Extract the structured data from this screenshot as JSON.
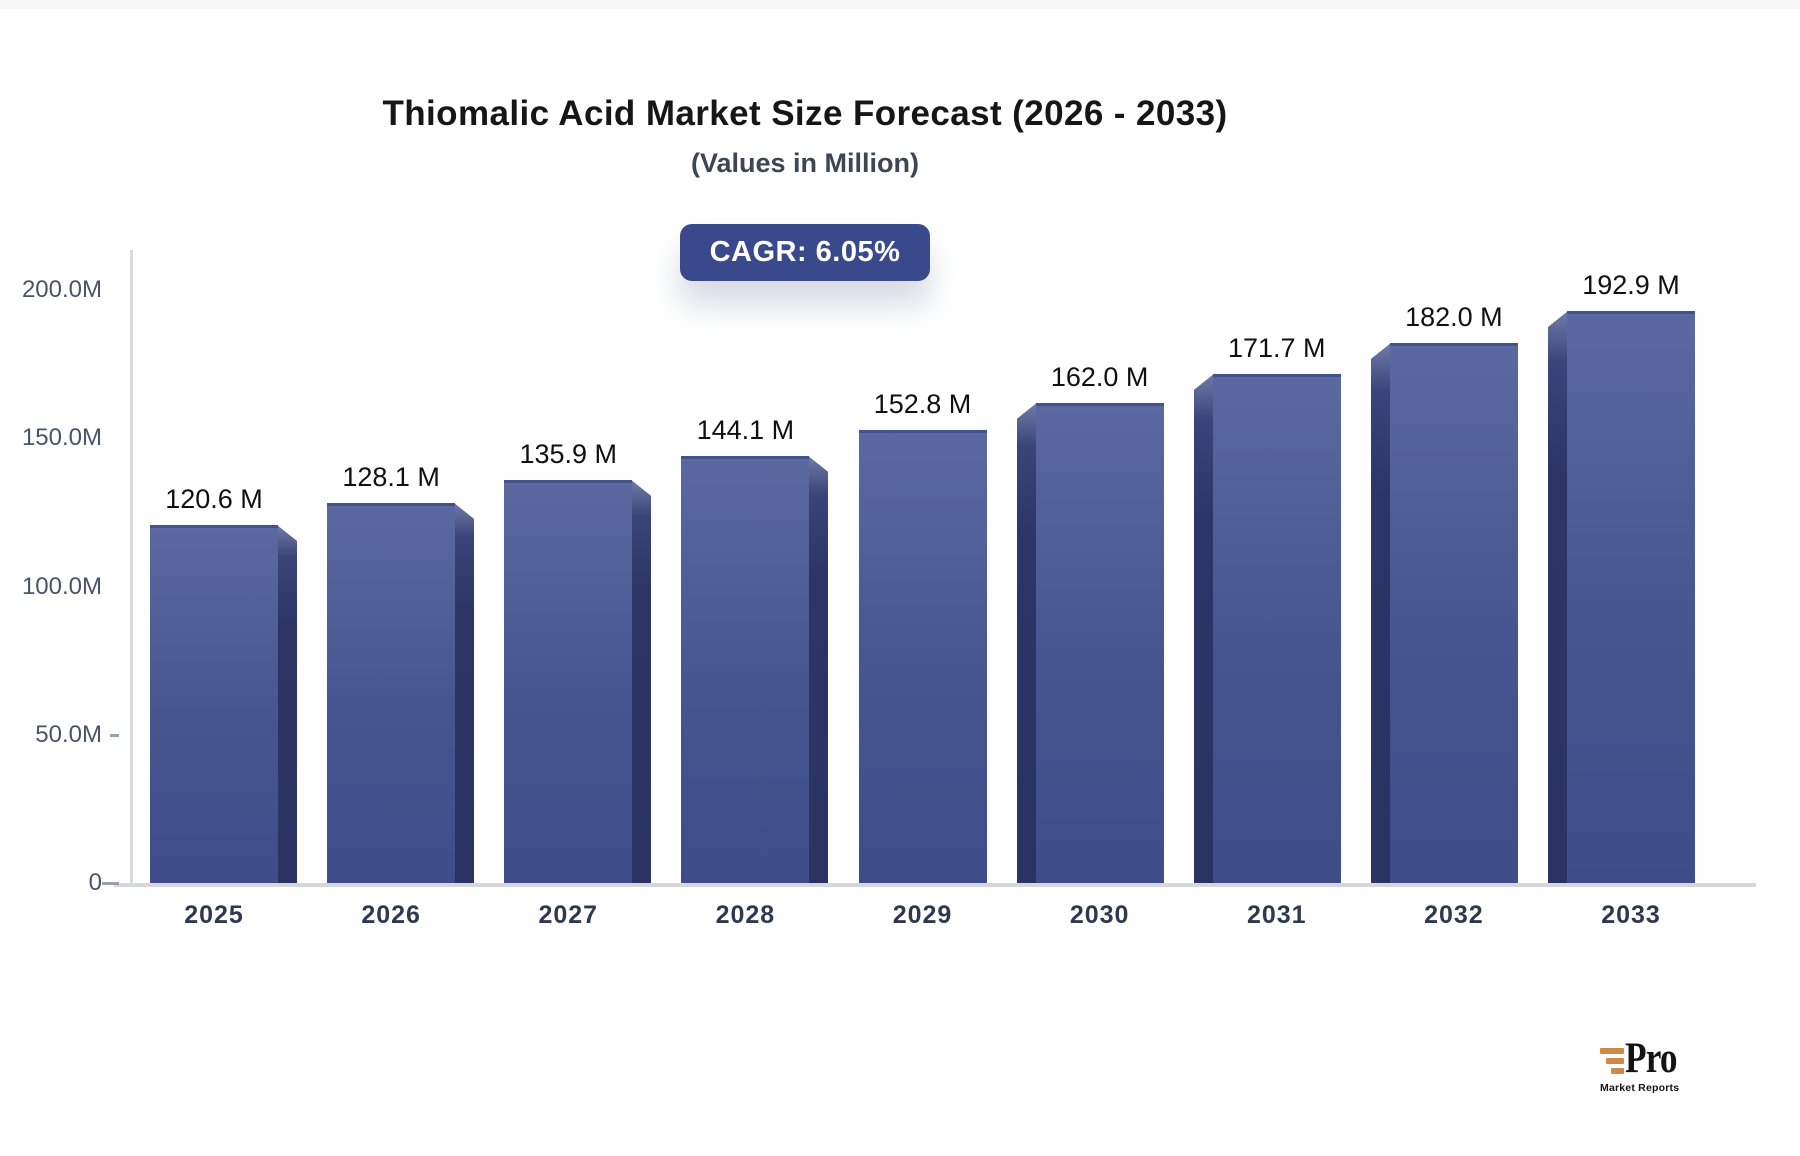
{
  "header": {
    "title": "Thiomalic Acid Market Size Forecast (2026 - 2033)",
    "subtitle": "(Values in Million)",
    "cagr_label": "CAGR: 6.05%"
  },
  "chart_data": {
    "type": "bar",
    "title": "Thiomalic Acid Market Size Forecast (2026 - 2033)",
    "subtitle": "(Values in Million)",
    "cagr_percent": 6.05,
    "unit": "Million",
    "categories": [
      "2025",
      "2026",
      "2027",
      "2028",
      "2029",
      "2030",
      "2031",
      "2032",
      "2033"
    ],
    "values": [
      120.6,
      128.1,
      135.9,
      144.1,
      152.8,
      162.0,
      171.7,
      182.0,
      192.9
    ],
    "value_suffix": " M",
    "ylim": [
      0,
      200
    ],
    "y_ticks": [
      {
        "label": "200.0M",
        "value": 200,
        "dash": false
      },
      {
        "label": "150.0M",
        "value": 150,
        "dash": false
      },
      {
        "label": "100.0M",
        "value": 100,
        "dash": false
      },
      {
        "label": "50.0M",
        "value": 50,
        "dash": true
      },
      {
        "label": "0",
        "value": 0,
        "dash": true
      }
    ],
    "grid": false,
    "legend": false,
    "xlabel": "",
    "ylabel": "",
    "colors": {
      "bar_face_top": "#5b68a1",
      "bar_face_bottom": "#3e4d8a",
      "bar_side": "#2a3361",
      "badge_bg": "#3a498b",
      "badge_text": "#ffffff",
      "axis": "#d5d7dd",
      "tick_text": "#4a5468",
      "category_text": "#2e3950"
    }
  },
  "logo": {
    "name": "Pro",
    "subtitle": "Market Reports",
    "accent": "#cd8948"
  }
}
